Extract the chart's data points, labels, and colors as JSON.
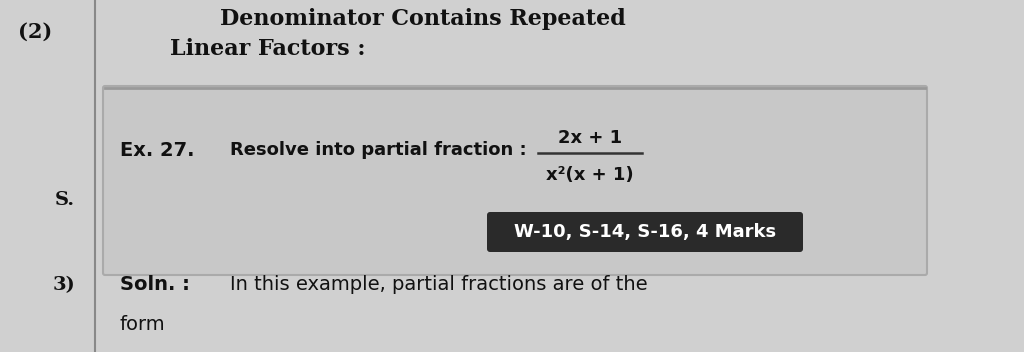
{
  "bg_color": "#c8c8c8",
  "page_bg": "#d0d0d0",
  "white_bg": "#f0f0f0",
  "header_text_1": "Denominator Contains Repeated",
  "header_text_2": "Linear Factors :",
  "number_label": "(2)",
  "side_label": "S.",
  "bottom_label": "3)",
  "ex_label": "Ex. 27.",
  "ex_text": "Resolve into partial fraction :",
  "numerator": "2x + 1",
  "denominator": "x²(x + 1)",
  "badge_text": "W-10, S-14, S-16, 4 Marks",
  "badge_bg": "#2a2a2a",
  "badge_text_color": "#ffffff",
  "soln_label": "Soln. :",
  "soln_text": "In this example, partial fractions are of the",
  "soln_text2": "form",
  "fraction_bar_color": "#333333",
  "header_color": "#111111",
  "body_text_color": "#111111",
  "box_border_color": "#888888"
}
